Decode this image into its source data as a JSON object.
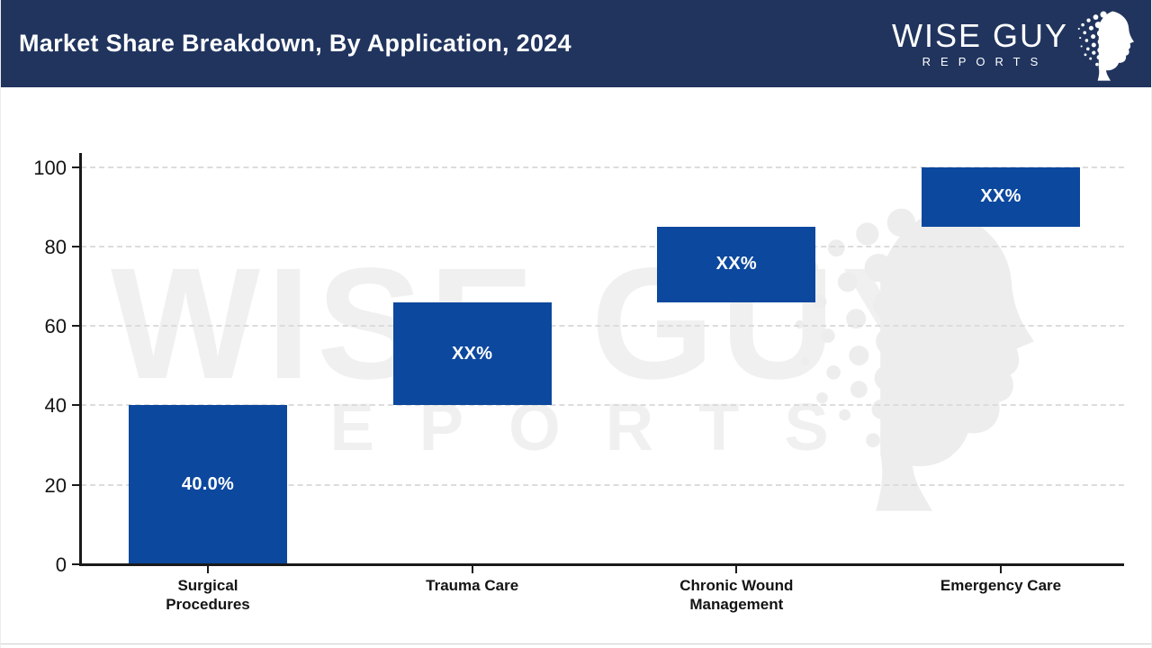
{
  "header": {
    "title": "Market Share Breakdown, By Application, 2024",
    "logo": {
      "line1": "WISE GUY",
      "line2": "REPORTS"
    }
  },
  "watermark": {
    "line1": "WISE GUY",
    "line2": "REPORTS"
  },
  "colors": {
    "header_bg": "#20345e",
    "bar": "#0c489e",
    "gridline": "#dcdcdc",
    "axis": "#1a1a1a",
    "bar_label": "#ffffff",
    "watermark": "#f0f0f0"
  },
  "chart_data": {
    "type": "bar",
    "subtype": "floating-range-waterfall",
    "title": "Market Share Breakdown, By Application, 2024",
    "categories": [
      "Surgical Procedures",
      "Trauma Care",
      "Chronic Wound Management",
      "Emergency Care"
    ],
    "categories_wrapped": [
      [
        "Surgical",
        "Procedures"
      ],
      [
        "Trauma Care"
      ],
      [
        "Chronic Wound",
        "Management"
      ],
      [
        "Emergency Care"
      ]
    ],
    "series": [
      {
        "name": "Market Share (%)",
        "ranges": [
          [
            0,
            40
          ],
          [
            40,
            66
          ],
          [
            66,
            85
          ],
          [
            85,
            100
          ]
        ],
        "labels": [
          "40.0%",
          "XX%",
          "XX%",
          "XX%"
        ]
      }
    ],
    "yticks": [
      0,
      20,
      40,
      60,
      80,
      100
    ],
    "ylim": [
      0,
      103
    ],
    "ylabel": "",
    "xlabel": "",
    "grid": "dashed-horizontal",
    "legend": "none"
  }
}
